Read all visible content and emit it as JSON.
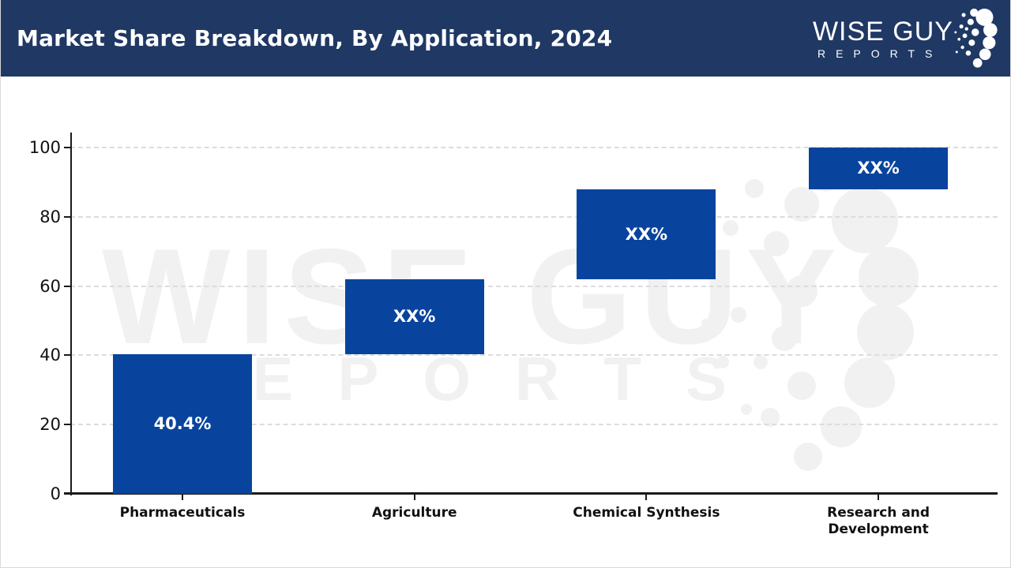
{
  "header": {
    "title": "Market Share Breakdown, By Application, 2024",
    "logo": {
      "line1": "WISE GUY",
      "line2": "REPORTS"
    }
  },
  "watermark": {
    "line1": "WISE GUY",
    "line2": "REPORTS"
  },
  "colors": {
    "header_bg": "#1f3864",
    "bar": "#08449e",
    "bar_label": "#ffffff",
    "grid": "#dcdcdc",
    "axis": "#1a1a1a",
    "watermark": "#f1f1f1"
  },
  "chart_data": {
    "type": "bar",
    "subtype": "waterfall",
    "title": "Market Share Breakdown, By Application, 2024",
    "categories": [
      "Pharmaceuticals",
      "Agriculture",
      "Chemical Synthesis",
      "Research and Development"
    ],
    "segments": [
      {
        "category": "Pharmaceuticals",
        "start": 0,
        "end": 40.4,
        "label": "40.4%"
      },
      {
        "category": "Agriculture",
        "start": 40.4,
        "end": 62,
        "label": "XX%"
      },
      {
        "category": "Chemical Synthesis",
        "start": 62,
        "end": 88,
        "label": "XX%"
      },
      {
        "category": "Research and Development",
        "start": 88,
        "end": 100,
        "label": "XX%"
      }
    ],
    "xlabel": "",
    "ylabel": "",
    "ylim": [
      0,
      100
    ],
    "yticks": [
      0,
      20,
      40,
      60,
      80,
      100
    ],
    "grid": "horizontal-dashed",
    "legend": "none"
  }
}
